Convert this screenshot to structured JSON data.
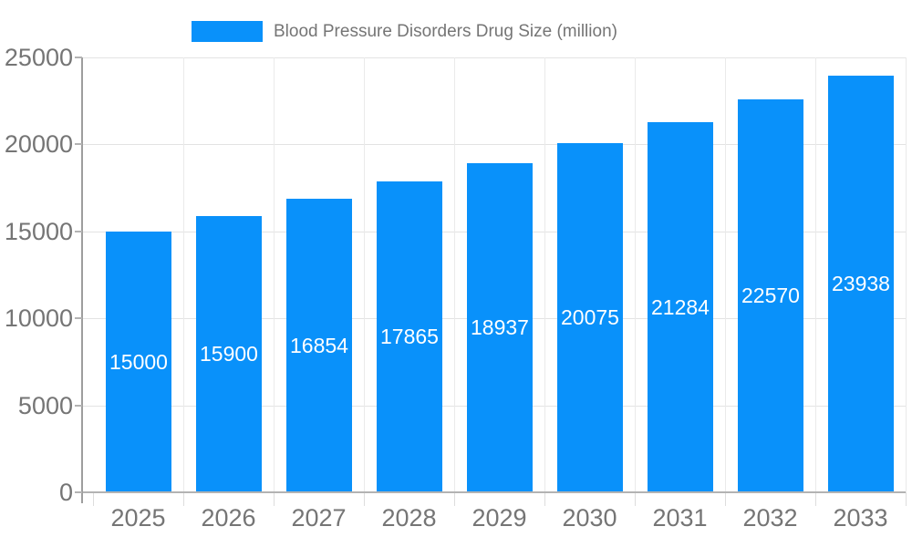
{
  "chart_data": {
    "type": "bar",
    "title": "Blood Pressure Disorders Drug Size (million)",
    "categories": [
      "2025",
      "2026",
      "2027",
      "2028",
      "2029",
      "2030",
      "2031",
      "2032",
      "2033"
    ],
    "values": [
      15000,
      15900,
      16854,
      17865,
      18937,
      20075,
      21284,
      22570,
      23938
    ],
    "xlabel": "",
    "ylabel": "",
    "ylim": [
      0,
      25000
    ],
    "yticks": [
      0,
      5000,
      10000,
      15000,
      20000,
      25000
    ],
    "grid": true,
    "legend_position": "top",
    "data_labels": "inside-center",
    "colors": {
      "bar": "#0991FA",
      "bar_value_label": "#FFFFFF",
      "axis_text": "#757575",
      "h_gridline": "#E3E3E3",
      "v_gridline": "#EAEAEA",
      "y_axis_line": "#9E9E9E",
      "baseline": "#B3B3B3",
      "x_tick": "#DDDDDD",
      "background": "#FFFFFF"
    }
  }
}
